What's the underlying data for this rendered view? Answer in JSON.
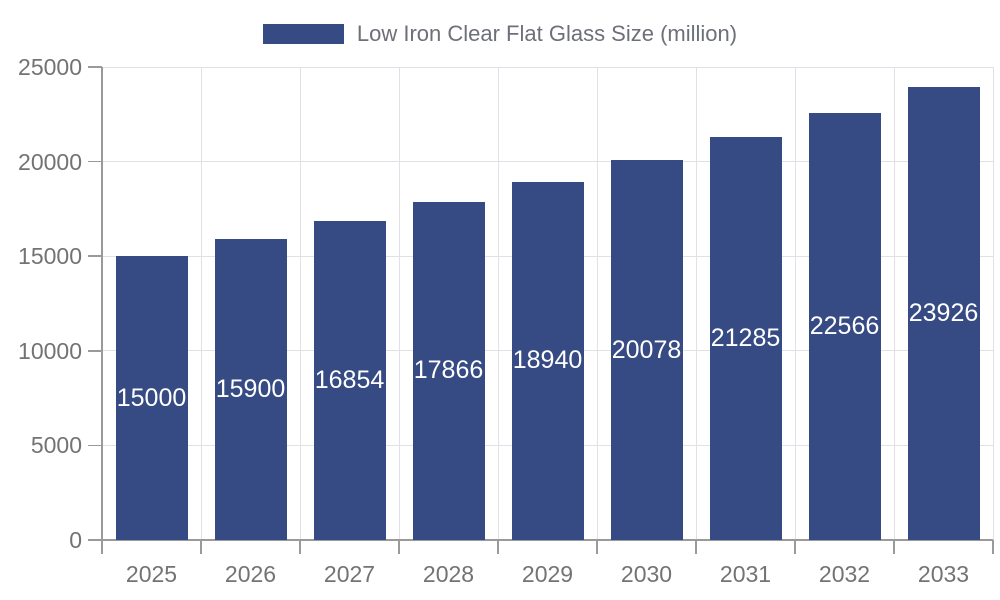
{
  "chart_data": {
    "type": "bar",
    "title": "",
    "legend": [
      "Low Iron Clear Flat Glass Size (million)"
    ],
    "legend_position": "top-center",
    "categories": [
      "2025",
      "2026",
      "2027",
      "2028",
      "2029",
      "2030",
      "2031",
      "2032",
      "2033"
    ],
    "series": [
      {
        "name": "Low Iron Clear Flat Glass Size (million)",
        "values": [
          15000,
          15900,
          16854,
          17866,
          18940,
          20078,
          21285,
          22566,
          23926
        ]
      }
    ],
    "xlabel": "",
    "ylabel": "",
    "ylim": [
      0,
      25000
    ],
    "yticks": [
      0,
      5000,
      10000,
      15000,
      20000,
      25000
    ],
    "grid": true,
    "bar_value_labels_shown": true,
    "colors": {
      "bar": "#364A84",
      "bar_value_label": "#FFFFFF",
      "axis_text": "#737373",
      "legend_text": "#6E7079",
      "axis_line": "#9A9A9A",
      "grid_line": "#E0E0E6",
      "background": "#FFFFFF"
    }
  }
}
